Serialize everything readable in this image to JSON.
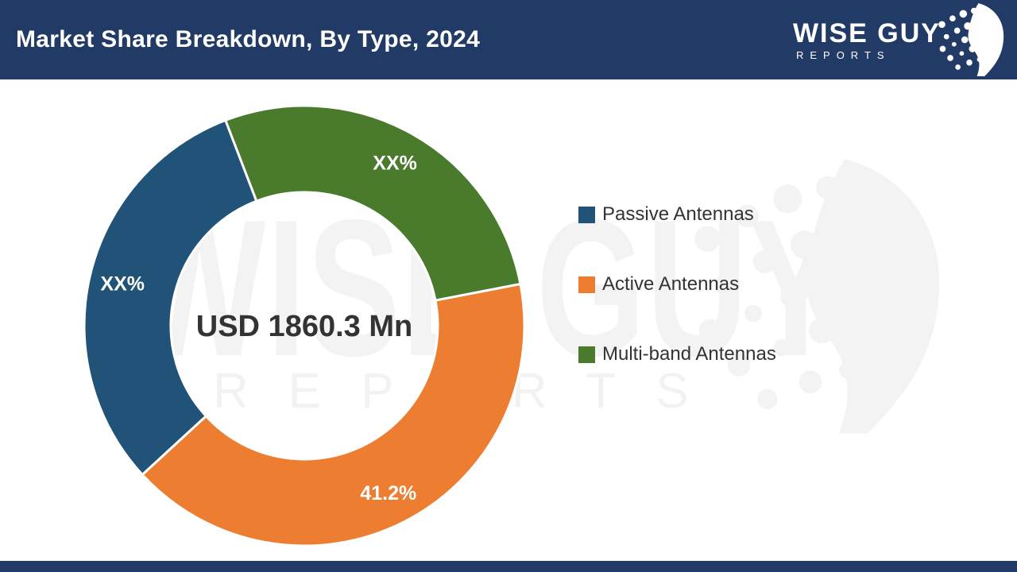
{
  "header": {
    "title": "Market Share Breakdown, By Type, 2024",
    "background_color": "#213a66",
    "logo": {
      "line1": "WISE GUY",
      "line2": "REPORTS",
      "face_icon": "dotted-head-profile"
    }
  },
  "watermark": {
    "line1": "WISE GUY",
    "line2": "REPORTS",
    "face_icon": "dotted-head-profile",
    "color": "#f3f3f3"
  },
  "chart_data": {
    "type": "pie",
    "subtype": "donut",
    "title": "Market Share Breakdown, By Type, 2024",
    "center_label": "USD 1860.3 Mn",
    "legend_position": "right",
    "start_angle_deg": -21,
    "direction": "clockwise",
    "segments": [
      {
        "label": "Passive Antennas",
        "display_value": "XX%",
        "value_pct": 31.0,
        "color": "#205377"
      },
      {
        "label": "Active Antennas",
        "display_value": "41.2%",
        "value_pct": 41.2,
        "color": "#ed7d31"
      },
      {
        "label": "Multi-band Antennas",
        "display_value": "XX%",
        "value_pct": 27.8,
        "color": "#4a7a2c"
      }
    ]
  },
  "footer": {
    "bar_color": "#213a66"
  }
}
